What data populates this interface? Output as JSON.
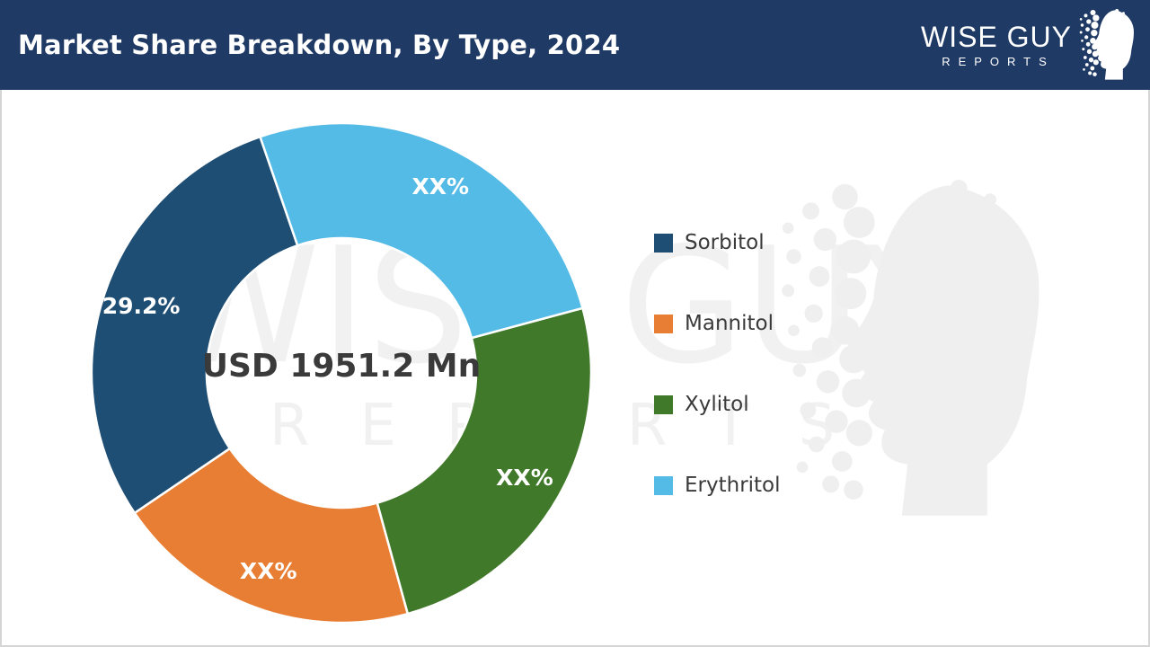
{
  "header": {
    "title": "Market Share Breakdown, By Type, 2024",
    "logo": {
      "line1": "WISE GUY",
      "line2": "REPORTS"
    }
  },
  "watermark": {
    "line1": "WISE GUY",
    "line2": "REPORTS"
  },
  "chart_data": {
    "type": "donut",
    "title": "Market Share Breakdown, By Type, 2024",
    "center_label": "USD 1951.2 Mn",
    "start_angle_deg": 109,
    "direction": "counterclockwise",
    "outer_radius_px": 278,
    "inner_radius_px": 150,
    "legend_position": "right",
    "segments": [
      {
        "name": "Sorbitol",
        "value_pct": 29.2,
        "label": "29.2%",
        "color": "#1F4E74"
      },
      {
        "name": "Mannitol",
        "value_pct": 19.8,
        "label": "XX%",
        "color": "#E87E33"
      },
      {
        "name": "Xylitol",
        "value_pct": 24.9,
        "label": "XX%",
        "color": "#41792A"
      },
      {
        "name": "Erythritol",
        "value_pct": 26.1,
        "label": "XX%",
        "color": "#54BBE6"
      }
    ]
  },
  "colors": {
    "header_bg": "#203A66",
    "center_text": "#3A3A3A",
    "legend_text": "#3A3A3A",
    "slice_label": "#FFFFFF",
    "watermark": "#F1F1F1",
    "border": "#D5D5D5"
  }
}
